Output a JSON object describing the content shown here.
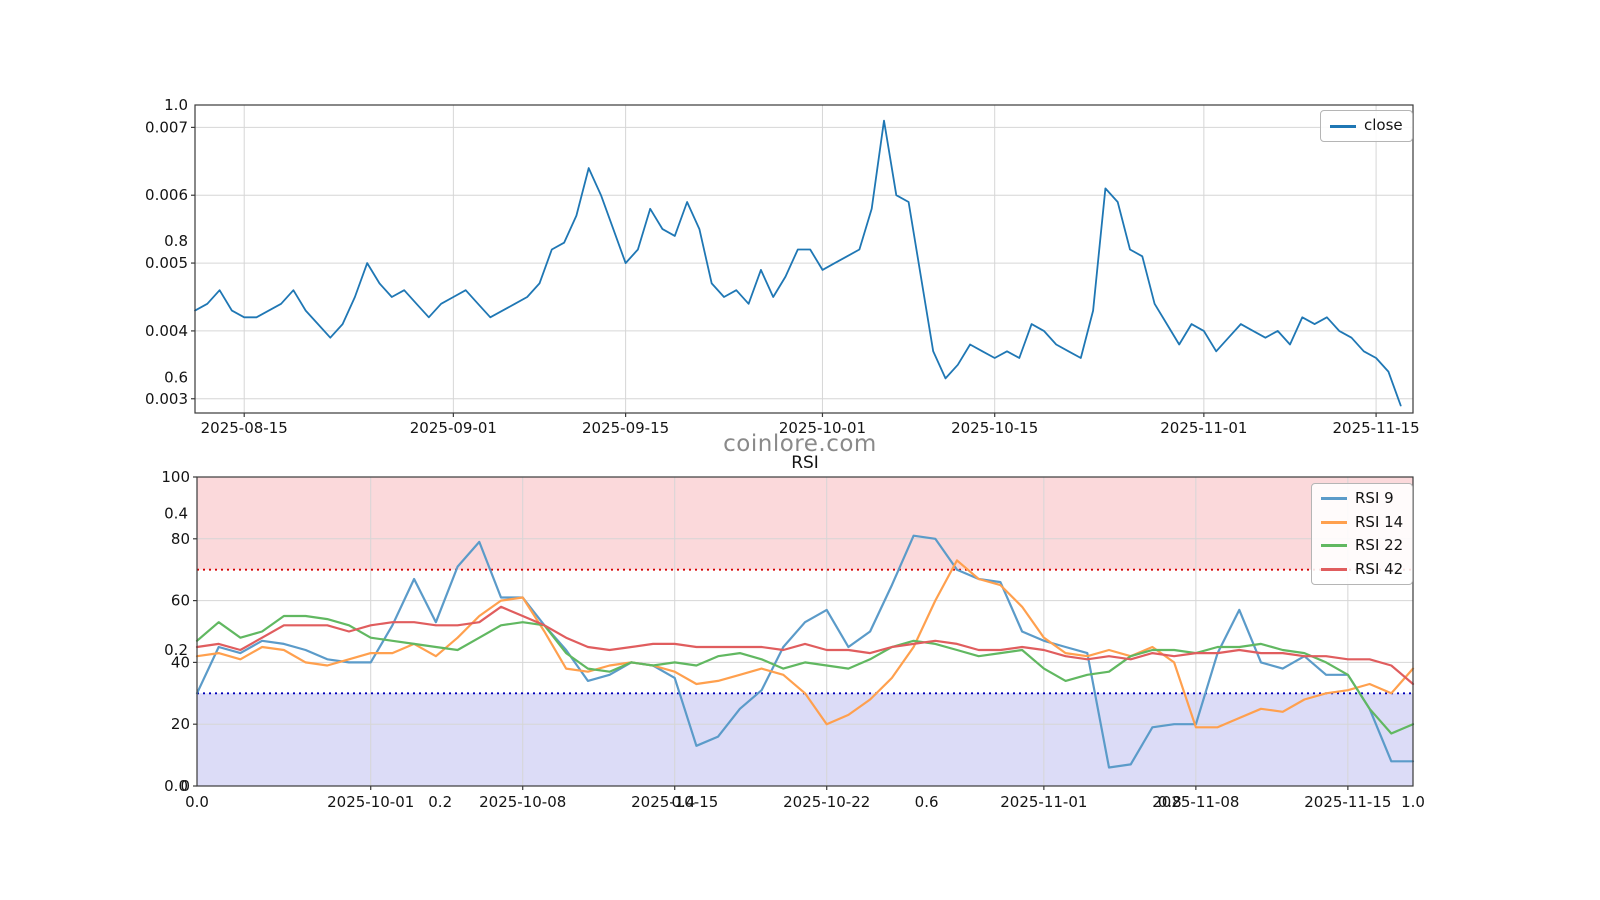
{
  "watermark": "coinlore.com",
  "secondary_axis": {
    "tick_labels": [
      "0.0",
      "0.2",
      "0.4",
      "0.6",
      "0.8",
      "1.0"
    ]
  },
  "chart_data": [
    {
      "type": "line",
      "name": "price",
      "start_date": "2025-08-11",
      "x_end_date": "2025-11-18",
      "xlim": [
        "2025-08-11",
        "2025-11-18"
      ],
      "ylim": [
        0.00279,
        0.00733
      ],
      "grid": true,
      "legend_position": "upper right",
      "x_tick_labels": [
        "2025-08-15",
        "2025-09-01",
        "2025-09-15",
        "2025-10-01",
        "2025-10-15",
        "2025-11-01",
        "2025-11-15"
      ],
      "y_ticks": [
        0.003,
        0.004,
        0.005,
        0.006,
        0.007
      ],
      "y_tick_labels": [
        "0.003",
        "0.004",
        "0.005",
        "0.006",
        "0.007"
      ],
      "series": [
        {
          "name": "close",
          "color": "#1f77b4",
          "values": [
            0.0043,
            0.0044,
            0.0046,
            0.0043,
            0.0042,
            0.0042,
            0.0043,
            0.0044,
            0.0046,
            0.0043,
            0.0041,
            0.0039,
            0.0041,
            0.0045,
            0.005,
            0.0047,
            0.0045,
            0.0046,
            0.0044,
            0.0042,
            0.0044,
            0.0045,
            0.0046,
            0.0044,
            0.0042,
            0.0043,
            0.0044,
            0.0045,
            0.0047,
            0.0052,
            0.0053,
            0.0057,
            0.0064,
            0.006,
            0.0055,
            0.005,
            0.0052,
            0.0058,
            0.0055,
            0.0054,
            0.0059,
            0.0055,
            0.0047,
            0.0045,
            0.0046,
            0.0044,
            0.0049,
            0.0045,
            0.0048,
            0.0052,
            0.0052,
            0.0049,
            0.005,
            0.0051,
            0.0052,
            0.0058,
            0.0071,
            0.006,
            0.0059,
            0.0048,
            0.0037,
            0.0033,
            0.0035,
            0.0038,
            0.0037,
            0.0036,
            0.0037,
            0.0036,
            0.0041,
            0.004,
            0.0038,
            0.0037,
            0.0036,
            0.0043,
            0.0061,
            0.0059,
            0.0052,
            0.0051,
            0.0044,
            0.0041,
            0.0038,
            0.0041,
            0.004,
            0.0037,
            0.0039,
            0.0041,
            0.004,
            0.0039,
            0.004,
            0.0038,
            0.0042,
            0.0041,
            0.0042,
            0.004,
            0.0039,
            0.0037,
            0.0036,
            0.0034,
            0.0029
          ]
        }
      ]
    },
    {
      "type": "line",
      "name": "rsi",
      "title": "RSI",
      "start_date": "2025-09-23",
      "x_end_date": "2025-11-18",
      "xlim": [
        "2025-09-23",
        "2025-11-18"
      ],
      "ylim": [
        0,
        100
      ],
      "grid": true,
      "legend_position": "upper right",
      "overbought_level": 70,
      "oversold_level": 30,
      "overbought_fill": "#fbd9db",
      "oversold_fill": "#dcdcf7",
      "overbought_line_color": "#d40000",
      "oversold_line_color": "#0000b8",
      "x_tick_labels": [
        "2025-10-01",
        "2025-10-08",
        "2025-10-15",
        "2025-10-22",
        "2025-11-01",
        "2025-11-08",
        "2025-11-15"
      ],
      "x_tick_labels_numeric": [
        "0.0",
        "0.2",
        "0.4",
        "0.6",
        "0.8",
        "1.0"
      ],
      "y_ticks": [
        0,
        20,
        40,
        60,
        80,
        100
      ],
      "y_tick_labels": [
        "0",
        "20",
        "40",
        "60",
        "80",
        "100"
      ],
      "series": [
        {
          "name": "RSI 9",
          "color": "#5b9bc9",
          "values": [
            30,
            45,
            43,
            47,
            46,
            44,
            41,
            40,
            40,
            52,
            67,
            53,
            71,
            79,
            61,
            61,
            52,
            44,
            34,
            36,
            40,
            39,
            35,
            13,
            16,
            25,
            31,
            45,
            53,
            57,
            45,
            50,
            65,
            81,
            80,
            70,
            67,
            66,
            50,
            47,
            45,
            43,
            6,
            7,
            19,
            20,
            20,
            43,
            57,
            40,
            38,
            42,
            36,
            36,
            25,
            8,
            8
          ]
        },
        {
          "name": "RSI 14",
          "color": "#ffa04e",
          "values": [
            42,
            43,
            41,
            45,
            44,
            40,
            39,
            41,
            43,
            43,
            46,
            42,
            48,
            55,
            60,
            61,
            50,
            38,
            37,
            39,
            40,
            39,
            37,
            33,
            34,
            36,
            38,
            36,
            30,
            20,
            23,
            28,
            35,
            45,
            60,
            73,
            67,
            65,
            58,
            48,
            43,
            42,
            44,
            42,
            45,
            40,
            19,
            19,
            22,
            25,
            24,
            28,
            30,
            31,
            33,
            30,
            38
          ]
        },
        {
          "name": "RSI 22",
          "color": "#61b861",
          "values": [
            47,
            53,
            48,
            50,
            55,
            55,
            54,
            52,
            48,
            47,
            46,
            45,
            44,
            48,
            52,
            53,
            52,
            43,
            38,
            37,
            40,
            39,
            40,
            39,
            42,
            43,
            41,
            38,
            40,
            39,
            38,
            41,
            45,
            47,
            46,
            44,
            42,
            43,
            44,
            38,
            34,
            36,
            37,
            42,
            44,
            44,
            43,
            45,
            45,
            46,
            44,
            43,
            40,
            36,
            25,
            17,
            20
          ]
        },
        {
          "name": "RSI 42",
          "color": "#e05d5e",
          "values": [
            45,
            46,
            44,
            48,
            52,
            52,
            52,
            50,
            52,
            53,
            53,
            52,
            52,
            53,
            58,
            55,
            52,
            48,
            45,
            44,
            45,
            46,
            46,
            45,
            45,
            45,
            45,
            44,
            46,
            44,
            44,
            43,
            45,
            46,
            47,
            46,
            44,
            44,
            45,
            44,
            42,
            41,
            42,
            41,
            43,
            42,
            43,
            43,
            44,
            43,
            43,
            42,
            42,
            41,
            41,
            39,
            33
          ]
        }
      ]
    }
  ]
}
